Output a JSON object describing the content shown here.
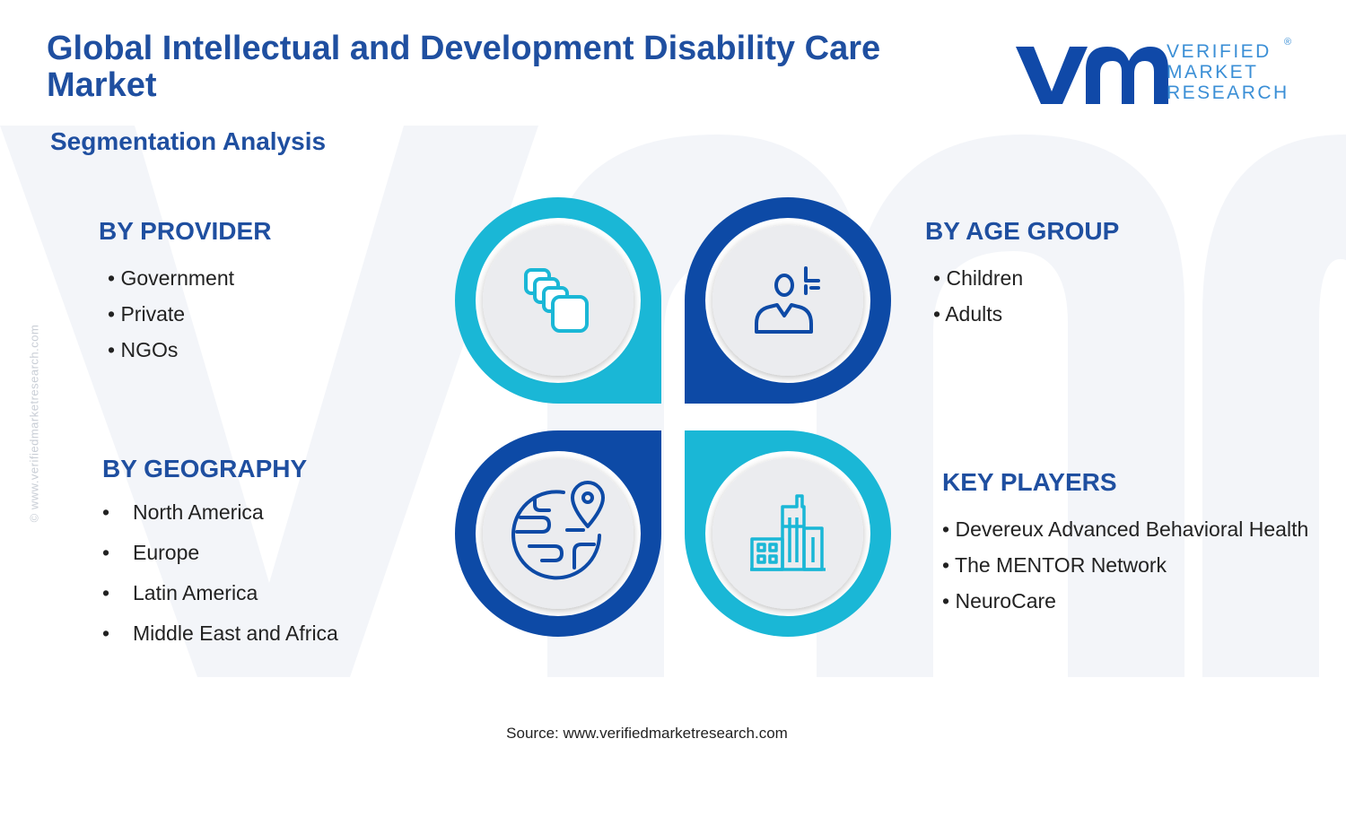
{
  "header": {
    "title": "Global Intellectual and Development Disability Care Market",
    "subtitle": "Segmentation Analysis"
  },
  "logo": {
    "line1": "VERIFIED",
    "line2": "MARKET",
    "line3": "RESEARCH",
    "reg": "®"
  },
  "side_watermark": "© www.verifiedmarketresearch.com",
  "segments": {
    "provider": {
      "heading": "BY PROVIDER",
      "items": [
        "Government",
        "Private",
        "NGOs"
      ]
    },
    "age_group": {
      "heading": "BY AGE GROUP",
      "items": [
        "Children",
        "Adults"
      ]
    },
    "geography": {
      "heading": "BY GEOGRAPHY",
      "items": [
        "North America",
        "Europe",
        "Latin America",
        "Middle East and Africa"
      ]
    },
    "key_players": {
      "heading": "KEY PLAYERS",
      "items": [
        "Devereux Advanced Behavioral Health",
        "The MENTOR Network",
        "NeuroCare"
      ]
    }
  },
  "icons": {
    "provider": "stacked-squares-icon",
    "age_group": "person-icon",
    "geography": "globe-location-icon",
    "key_players": "buildings-icon"
  },
  "colors": {
    "brand_blue": "#1f4fa0",
    "cyan": "#1ab7d6",
    "dark_blue": "#0d4aa6"
  },
  "footer": {
    "source": "Source: www.verifiedmarketresearch.com"
  }
}
